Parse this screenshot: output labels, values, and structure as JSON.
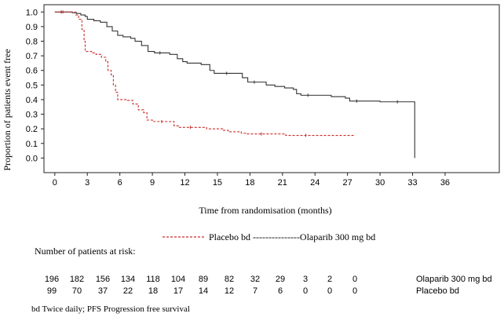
{
  "chart_data": {
    "type": "line",
    "title": "",
    "ylabel": "Proportion of patients event free",
    "xlabel": "Time from randomisation (months)",
    "xlim": [
      -1,
      41
    ],
    "ylim": [
      -0.1,
      1.05
    ],
    "x_ticks": [
      0,
      3,
      6,
      9,
      12,
      15,
      18,
      21,
      24,
      27,
      30,
      33,
      36
    ],
    "x_tick_labels": [
      "0",
      "3",
      "6",
      "9",
      "12",
      "15",
      "18",
      "21",
      "24",
      "27",
      "30",
      "33",
      "36"
    ],
    "y_ticks": [
      0.0,
      0.1,
      0.2,
      0.3,
      0.4,
      0.5,
      0.6,
      0.7,
      0.8,
      0.9,
      1.0
    ],
    "y_tick_labels": [
      "0.0",
      "0.1",
      "0.2",
      "0.3",
      "0.4",
      "0.5",
      "0.6",
      "0.7",
      "0.8",
      "0.9",
      "1.0"
    ],
    "grid": false,
    "legend_text": "Placebo bd ---------------Olaparib 300 mg bd",
    "legend_placement": "below-chart",
    "series": [
      {
        "name": "Olaparib 300 mg bd",
        "color": "#333333",
        "dash": "solid",
        "points": [
          [
            0,
            1.0
          ],
          [
            1.2,
            1.0
          ],
          [
            1.6,
            0.995
          ],
          [
            2.0,
            0.99
          ],
          [
            2.4,
            0.98
          ],
          [
            2.8,
            0.97
          ],
          [
            3.0,
            0.95
          ],
          [
            3.6,
            0.94
          ],
          [
            4.2,
            0.93
          ],
          [
            4.8,
            0.9
          ],
          [
            5.3,
            0.87
          ],
          [
            5.8,
            0.84
          ],
          [
            6.3,
            0.83
          ],
          [
            7.0,
            0.82
          ],
          [
            7.4,
            0.8
          ],
          [
            8.0,
            0.77
          ],
          [
            8.6,
            0.73
          ],
          [
            9.2,
            0.72
          ],
          [
            10.2,
            0.72
          ],
          [
            10.6,
            0.71
          ],
          [
            11.3,
            0.68
          ],
          [
            11.8,
            0.66
          ],
          [
            12.2,
            0.65
          ],
          [
            13.5,
            0.64
          ],
          [
            14.3,
            0.6
          ],
          [
            14.7,
            0.58
          ],
          [
            17.0,
            0.58
          ],
          [
            17.3,
            0.55
          ],
          [
            17.8,
            0.52
          ],
          [
            19.0,
            0.52
          ],
          [
            19.5,
            0.5
          ],
          [
            20.3,
            0.49
          ],
          [
            21.2,
            0.48
          ],
          [
            22.0,
            0.47
          ],
          [
            22.3,
            0.44
          ],
          [
            22.7,
            0.43
          ],
          [
            24.0,
            0.43
          ],
          [
            25.5,
            0.42
          ],
          [
            26.8,
            0.41
          ],
          [
            27.2,
            0.39
          ],
          [
            28.5,
            0.39
          ],
          [
            30.0,
            0.385
          ],
          [
            33.2,
            0.385
          ],
          [
            33.2,
            0.0
          ]
        ]
      },
      {
        "name": "Placebo bd",
        "color": "#cc2a2a",
        "dash": "dashed",
        "points": [
          [
            0,
            1.0
          ],
          [
            1.5,
            1.0
          ],
          [
            1.9,
            0.98
          ],
          [
            2.2,
            0.95
          ],
          [
            2.5,
            0.88
          ],
          [
            2.7,
            0.8
          ],
          [
            2.8,
            0.73
          ],
          [
            3.4,
            0.72
          ],
          [
            3.8,
            0.71
          ],
          [
            4.3,
            0.69
          ],
          [
            4.7,
            0.66
          ],
          [
            4.9,
            0.6
          ],
          [
            5.2,
            0.57
          ],
          [
            5.4,
            0.5
          ],
          [
            5.6,
            0.45
          ],
          [
            5.8,
            0.4
          ],
          [
            6.7,
            0.395
          ],
          [
            7.2,
            0.37
          ],
          [
            7.7,
            0.33
          ],
          [
            8.2,
            0.31
          ],
          [
            8.5,
            0.26
          ],
          [
            9.0,
            0.25
          ],
          [
            10.7,
            0.25
          ],
          [
            11.0,
            0.22
          ],
          [
            11.4,
            0.21
          ],
          [
            13.6,
            0.21
          ],
          [
            14.0,
            0.2
          ],
          [
            15.5,
            0.19
          ],
          [
            16.0,
            0.18
          ],
          [
            17.2,
            0.17
          ],
          [
            17.6,
            0.165
          ],
          [
            20.5,
            0.165
          ],
          [
            21.3,
            0.155
          ],
          [
            25.0,
            0.155
          ],
          [
            27.6,
            0.15
          ]
        ]
      }
    ],
    "risk_table": {
      "header": "Number of patients at risk:",
      "rows": [
        {
          "label": "Olaparib 300 mg bd",
          "values": [
            "196",
            "182",
            "156",
            "134",
            "118",
            "104",
            "89",
            "82",
            "32",
            "29",
            "3",
            "2",
            "0"
          ]
        },
        {
          "label": "Placebo bd",
          "values": [
            "99",
            "70",
            "37",
            "22",
            "18",
            "17",
            "14",
            "12",
            "7",
            "6",
            "0",
            "0",
            "0"
          ]
        }
      ]
    },
    "footnote": "bd Twice daily; PFS Progression free survival"
  }
}
